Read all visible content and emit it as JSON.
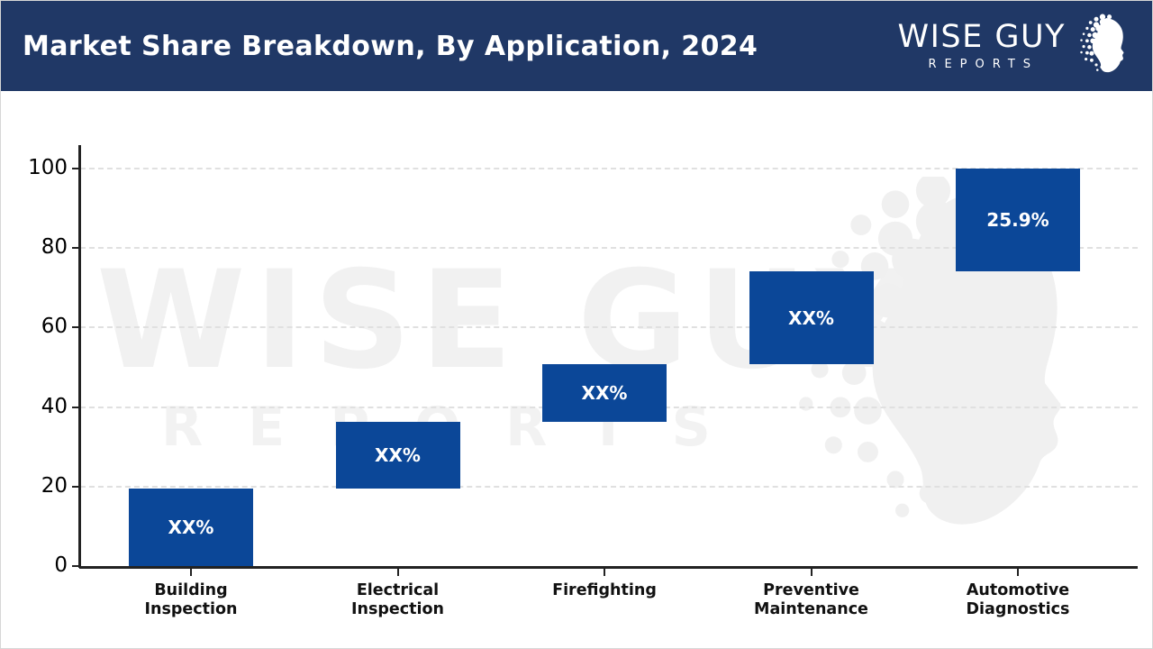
{
  "header": {
    "title": "Market Share Breakdown, By Application, 2024",
    "logo": {
      "line1": "WISE GUY",
      "line2": "REPORTS"
    }
  },
  "watermark": {
    "line1": "WISE GUY",
    "line2": "REPORTS"
  },
  "colors": {
    "header_bg": "#203866",
    "title_text": "#ffffff",
    "bar": "#0b4798",
    "bar_label": "#ffffff",
    "grid": "#e0e0e0",
    "axis": "#222222",
    "tick_label": "#000000",
    "category_label": "#111111",
    "watermark": "#f1f1f1",
    "page_border": "#d6d6d6"
  },
  "chart_data": {
    "type": "bar",
    "subtype": "waterfall (floating segment bars)",
    "title": "Market Share Breakdown, By Application, 2024",
    "categories": [
      "Building Inspection",
      "Electrical Inspection",
      "Firefighting",
      "Preventive Maintenance",
      "Automotive Diagnostics"
    ],
    "bars": [
      {
        "category": "Building Inspection",
        "lines": [
          "Building",
          "Inspection"
        ],
        "start": 0,
        "end": 19.5,
        "label": "XX%"
      },
      {
        "category": "Electrical Inspection",
        "lines": [
          "Electrical",
          "Inspection"
        ],
        "start": 19.5,
        "end": 36.2,
        "label": "XX%"
      },
      {
        "category": "Firefighting",
        "lines": [
          "Firefighting"
        ],
        "start": 36.2,
        "end": 50.8,
        "label": "XX%"
      },
      {
        "category": "Preventive Maintenance",
        "lines": [
          "Preventive",
          "Maintenance"
        ],
        "start": 50.8,
        "end": 74.1,
        "label": "XX%"
      },
      {
        "category": "Automotive Diagnostics",
        "lines": [
          "Automotive",
          "Diagnostics"
        ],
        "start": 74.1,
        "end": 100,
        "label": "25.9%",
        "value": 25.9
      }
    ],
    "ylim": [
      0,
      100
    ],
    "yticks": [
      0,
      20,
      40,
      60,
      80,
      100
    ],
    "grid": "horizontal dashed",
    "legend": false
  }
}
